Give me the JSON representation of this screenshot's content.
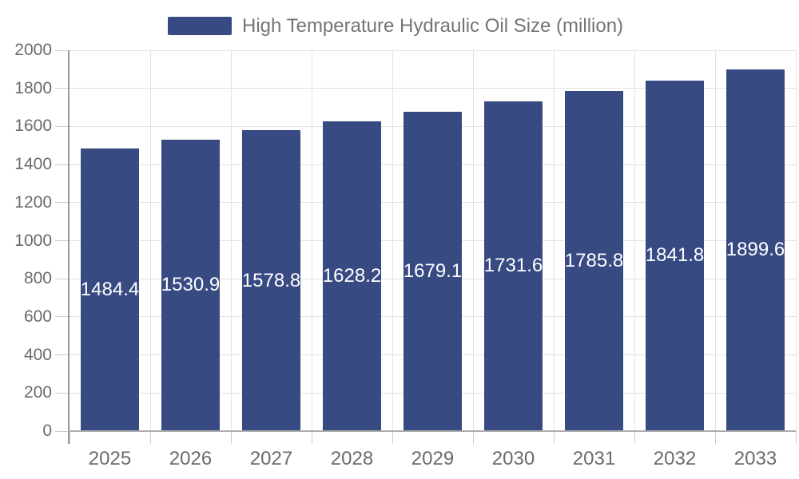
{
  "chart_data": {
    "type": "bar",
    "title": "High Temperature Hydraulic Oil Size (million)",
    "legend": {
      "position": "top",
      "label": "High Temperature Hydraulic Oil Size (million)"
    },
    "categories": [
      "2025",
      "2026",
      "2027",
      "2028",
      "2029",
      "2030",
      "2031",
      "2032",
      "2033"
    ],
    "series": [
      {
        "name": "High Temperature Hydraulic Oil Size (million)",
        "values": [
          1484.4,
          1530.9,
          1578.8,
          1628.2,
          1679.1,
          1731.6,
          1785.8,
          1841.8,
          1899.6
        ],
        "labels": [
          "1484.4",
          "1530.9",
          "1578.8",
          "1628.2",
          "1679.1",
          "1731.6",
          "1785.8",
          "1841.8",
          "1899.6"
        ]
      }
    ],
    "xlabel": "",
    "ylabel": "",
    "ylim": [
      0,
      2000
    ],
    "yticks": [
      0,
      200,
      400,
      600,
      800,
      1000,
      1200,
      1400,
      1600,
      1800,
      2000
    ],
    "grid": true,
    "value_labels_position": "inside-center",
    "colors": {
      "bar": "#374A82",
      "title_text": "#757575",
      "axis_text": "#6B6B6B",
      "grid": "#E2E2E2",
      "tick": "#CCCCCC",
      "spine": "#999999",
      "baseline": "#ADADAD",
      "value_label": "#FFFFFF",
      "background": "#FFFFFF"
    }
  }
}
